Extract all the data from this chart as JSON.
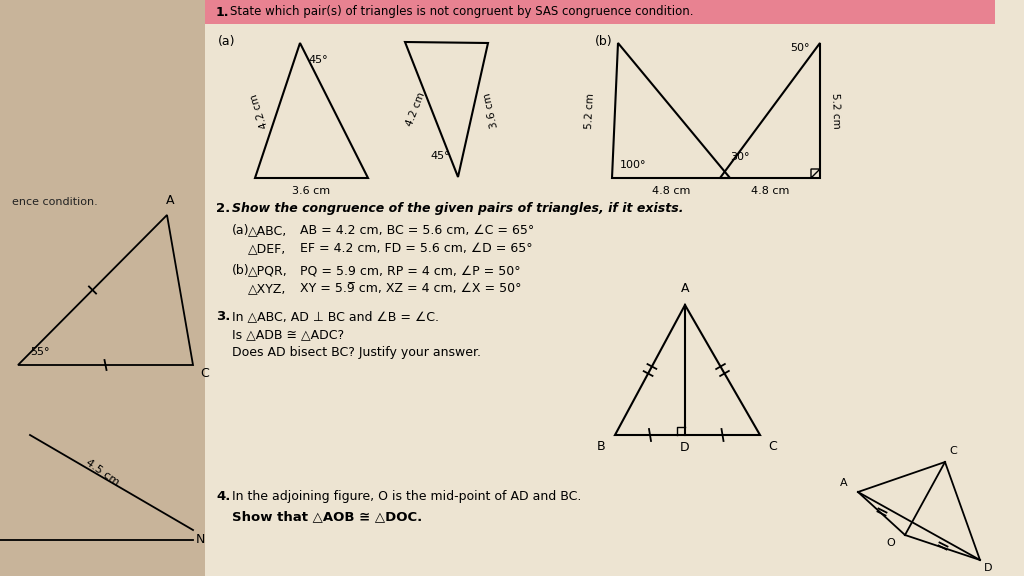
{
  "bg_color": "#c8b89a",
  "page_bg": "#e8dcc8",
  "left_bg": "#c8b09a",
  "header_color": "#e87a8a",
  "header_text": "State which pair(s) of triangles is not congruent by SAS congruence condition.",
  "q1_num": "1.",
  "label_a": "(a)",
  "label_b": "(b)",
  "q2_num": "2.",
  "q2_text": "Show the congruence of the given pairs of triangles, if it exists.",
  "q2a_label": "(a)",
  "q2a_tri1": "△ABC,",
  "q2a_tri1_data": "AB = 4.2 cm, BC = 5.6 cm, ∠C = 65°",
  "q2a_tri2": "△DEF,",
  "q2a_tri2_data": "EF = 4.2 cm, FD = 5.6 cm, ∠D = 65°",
  "q2b_label": "(b)",
  "q2b_tri1": "△PQR,",
  "q2b_tri1_data": "PQ = 5.9 cm, RP = 4 cm, ∠P = 50°",
  "q2b_tri2": "△XYZ,",
  "q2b_tri2_data": "XY = 5.9̅ cm, XZ = 4 cm, ∠X = 50°",
  "q3_num": "3.",
  "q3_line1": "In △ABC, AD ⊥ BC and ∠B = ∠C.",
  "q3_line2": "Is △ADB ≅ △ADC?",
  "q3_line3": "Does AD bisect BC? Justify your answer.",
  "q4_num": "4.",
  "q4_line1": "In the adjoining figure, O is the mid-point of AD and BC.",
  "q4_line2": "Show that △AOB ≅ △DOC.",
  "ence_text": "ence condition."
}
